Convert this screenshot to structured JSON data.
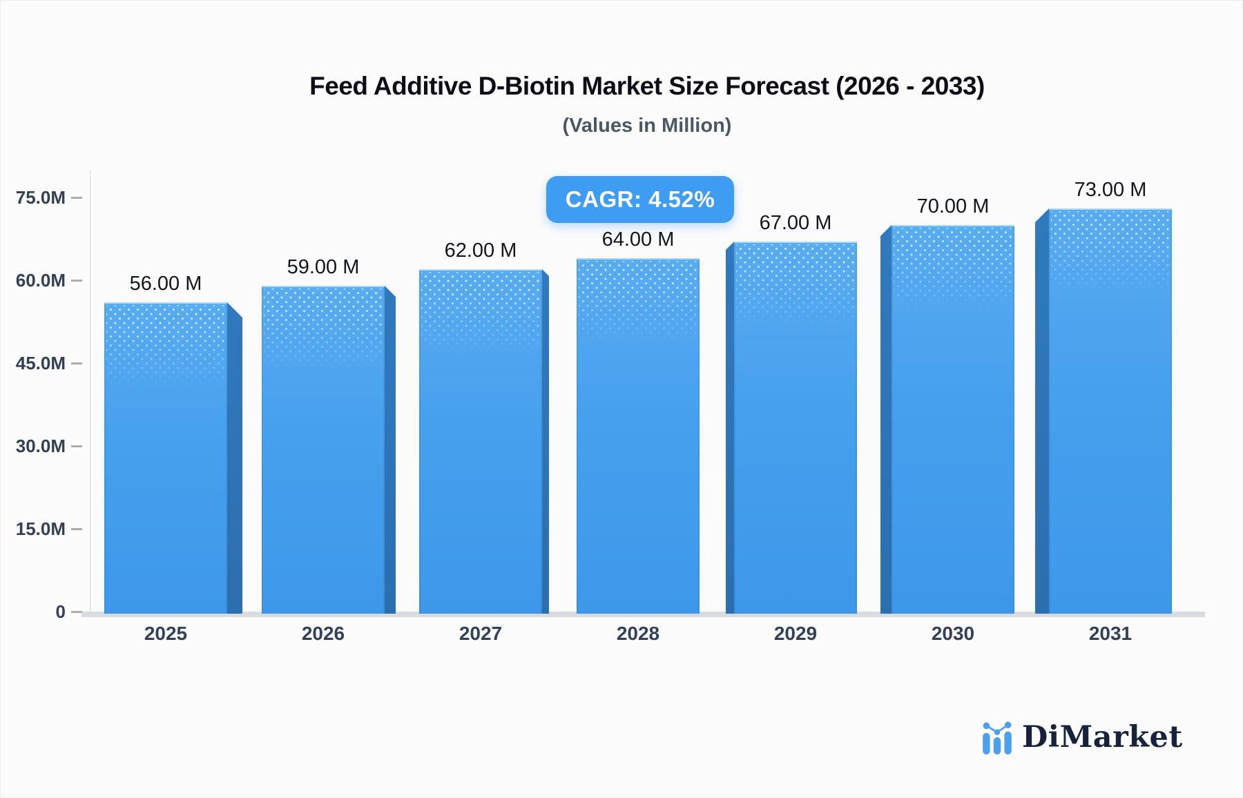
{
  "header": {
    "title": "Feed Additive D-Biotin Market Size Forecast (2026 - 2033)",
    "subtitle": "(Values in Million)",
    "cagr_badge": "CAGR: 4.52%"
  },
  "brand": {
    "name": "DiMarket",
    "icon": "bar-line-chart-logo-icon"
  },
  "colors": {
    "bar_face_top": "#58ACF1",
    "bar_face_bottom": "#3E97EA",
    "bar_bevel": "#2F74B6",
    "badge_background": "#3E9CF2",
    "axis_floor": "#D8DBE0",
    "tick_label": "#323F55",
    "logo_blue": "#4B9FED",
    "logo_navy": "#17233C"
  },
  "chart_data": {
    "type": "bar",
    "title": "Feed Additive D-Biotin Market Size Forecast (2026 - 2033)",
    "subtitle": "(Values in Million)",
    "cagr_percent": 4.52,
    "categories": [
      "2025",
      "2026",
      "2027",
      "2028",
      "2029",
      "2030",
      "2031"
    ],
    "values": [
      56,
      59,
      62,
      64,
      67,
      70,
      73
    ],
    "bar_labels": [
      "56.00 M",
      "59.00 M",
      "62.00 M",
      "64.00 M",
      "67.00 M",
      "70.00 M",
      "73.00 M"
    ],
    "unit": "Million",
    "xlabel": "",
    "ylabel": "",
    "ylim": [
      0,
      75
    ],
    "y_ticks": [
      {
        "value": 75,
        "label": "75.0M"
      },
      {
        "value": 60,
        "label": "60.0M"
      },
      {
        "value": 45,
        "label": "45.0M"
      },
      {
        "value": 30,
        "label": "30.0M"
      },
      {
        "value": 15,
        "label": "15.0M"
      },
      {
        "value": 0,
        "label": "0"
      }
    ],
    "grid": false,
    "legend": false
  }
}
